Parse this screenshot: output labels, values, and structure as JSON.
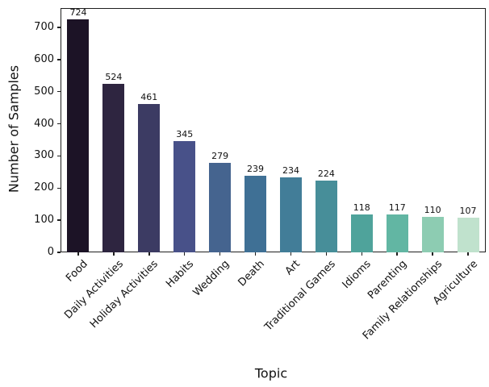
{
  "chart_data": {
    "type": "bar",
    "title": "",
    "xlabel": "Topic",
    "ylabel": "Number of Samples",
    "categories": [
      "Food",
      "Daily Activities",
      "Holiday Activities",
      "Habits",
      "Wedding",
      "Death",
      "Art",
      "Traditional Games",
      "Idioms",
      "Parenting",
      "Family Relationships",
      "Agriculture"
    ],
    "values": [
      724,
      524,
      461,
      345,
      279,
      239,
      234,
      224,
      118,
      117,
      110,
      107
    ],
    "bar_colors": [
      "#1c1326",
      "#2e2540",
      "#3c3b63",
      "#485189",
      "#45648f",
      "#3f7095",
      "#427d98",
      "#478e99",
      "#4fa39b",
      "#62b6a3",
      "#8dccb2",
      "#c0e2cd"
    ],
    "ylim": [
      0,
      760
    ],
    "yticks": [
      0,
      100,
      200,
      300,
      400,
      500,
      600,
      700
    ],
    "grid": false,
    "legend": "none",
    "value_labels_shown": true,
    "axis_color": "#1f1f1f",
    "text_color": "#111111",
    "background": "#ffffff",
    "x_tick_rotation_deg": 45
  }
}
